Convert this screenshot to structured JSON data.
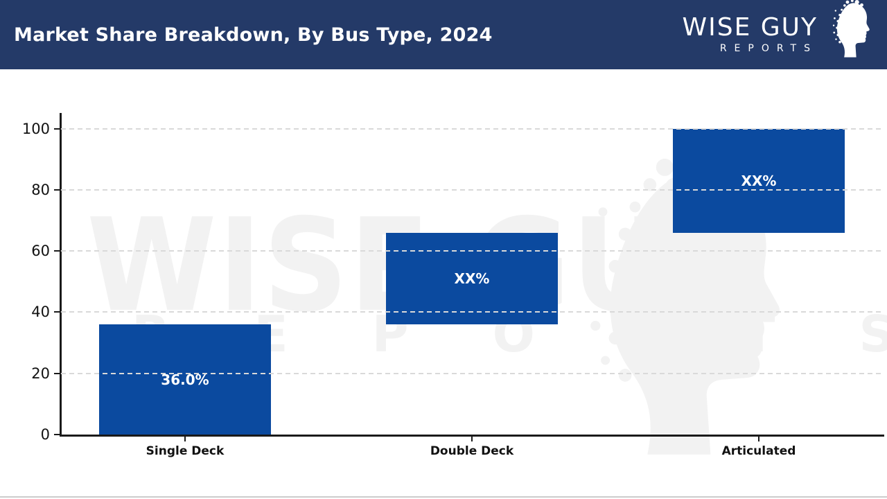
{
  "header": {
    "title": "Market Share Breakdown, By Bus Type, 2024",
    "bg_color": "#243a68",
    "logo": {
      "line1": "WISE GUY",
      "line2": "REPORTS"
    }
  },
  "watermark": {
    "line1": "WISE GUY",
    "line2": "R E P O R T S",
    "color": "#f2f2f2"
  },
  "chart_data": {
    "type": "bar",
    "subtype": "waterfall",
    "title": "",
    "xlabel": "",
    "ylabel": "",
    "categories": [
      "Single Deck",
      "Double Deck",
      "Articulated"
    ],
    "series": [
      {
        "name": "Market Share",
        "segments": [
          {
            "category": "Single Deck",
            "start": 0,
            "end": 36,
            "value": 36,
            "label": "36.0%"
          },
          {
            "category": "Double Deck",
            "start": 36,
            "end": 66,
            "value": 30,
            "label": "XX%"
          },
          {
            "category": "Articulated",
            "start": 66,
            "end": 100,
            "value": 34,
            "label": "XX%"
          }
        ]
      }
    ],
    "yticks": [
      0,
      20,
      40,
      60,
      80,
      100
    ],
    "ylim": [
      0,
      105
    ],
    "grid": "horizontal-dashed-above-bars",
    "legend": "none",
    "bar_color": "#0b4a9f",
    "bar_label_color": "#ffffff",
    "gridline_color": "#d9d9d9",
    "axis_color": "#1a1a1a"
  }
}
